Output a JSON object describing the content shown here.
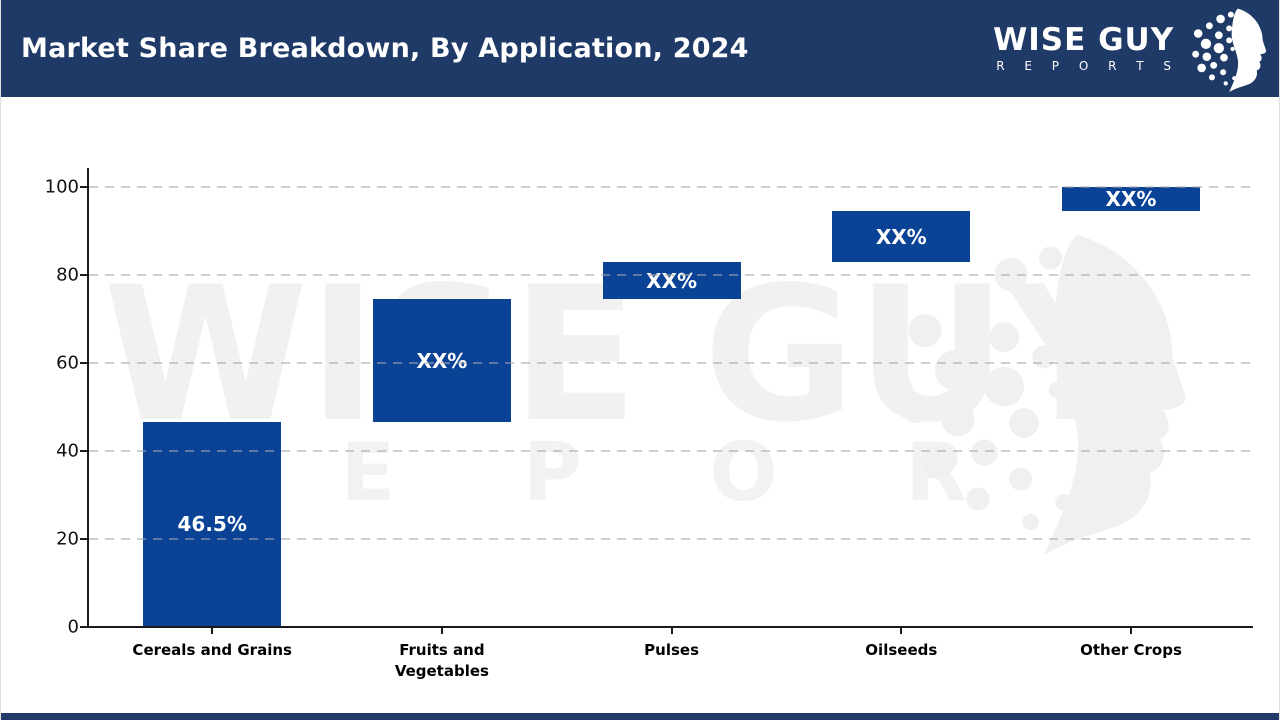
{
  "header": {
    "title": "Market Share Breakdown, By Application, 2024"
  },
  "logo": {
    "line1": "WISE GUY",
    "line2": "R E P O R T S"
  },
  "watermark": {
    "line1": "WISE GUY",
    "line2": "R E P O R T S"
  },
  "chart_data": {
    "type": "bar",
    "subtype": "waterfall-stacked-segments",
    "title": "Market Share Breakdown, By Application, 2024",
    "categories": [
      "Cereals and Grains",
      "Fruits and\nVegetables",
      "Pulses",
      "Oilseeds",
      "Other Crops"
    ],
    "segments": [
      {
        "category": "Cereals and Grains",
        "start": 0,
        "end": 46.5,
        "label": "46.5%"
      },
      {
        "category": "Fruits and Vegetables",
        "start": 46.5,
        "end": 74.5,
        "label": "XX%"
      },
      {
        "category": "Pulses",
        "start": 74.5,
        "end": 83,
        "label": "XX%"
      },
      {
        "category": "Oilseeds",
        "start": 83,
        "end": 94.5,
        "label": "XX%"
      },
      {
        "category": "Other Crops",
        "start": 94.5,
        "end": 100,
        "label": "XX%"
      }
    ],
    "yticks": [
      0,
      20,
      40,
      60,
      80,
      100
    ],
    "ylim": [
      0,
      100
    ],
    "xlabel": "",
    "ylabel": "",
    "grid": "horizontal-dashed",
    "legend": "none",
    "colors": {
      "bar": "#0a4296",
      "bar_label_text": "#ffffff",
      "header_bg": "#1f3a67",
      "footer_bg": "#1f3a67",
      "axis": "#1a1a1a",
      "grid": "#bdbdbd",
      "watermark": "#f1f1f1"
    }
  }
}
